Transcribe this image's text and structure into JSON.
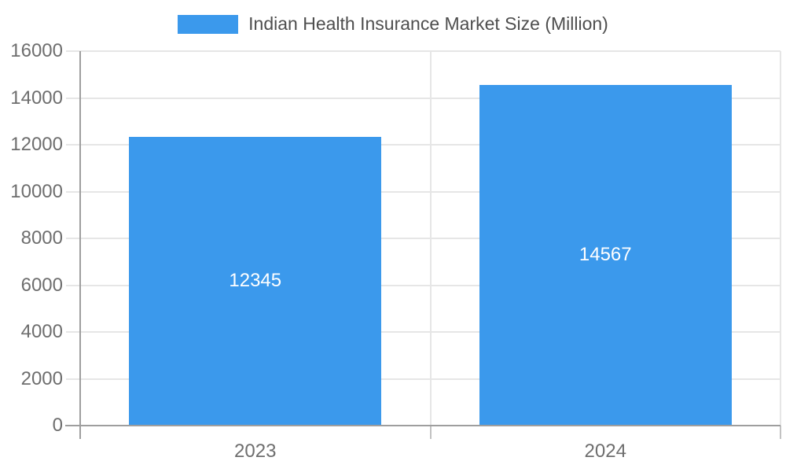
{
  "legend": {
    "label": "Indian Health Insurance Market Size (Million)"
  },
  "chart_data": {
    "type": "bar",
    "title": "Indian Health Insurance Market Size (Million)",
    "categories": [
      "2023",
      "2024"
    ],
    "values": [
      12345,
      14567
    ],
    "bar_labels": [
      "12345",
      "14567"
    ],
    "series": [
      {
        "name": "Indian Health Insurance Market Size (Million)",
        "values": [
          12345,
          14567
        ]
      }
    ],
    "xlabel": "",
    "ylabel": "",
    "ylim": [
      0,
      16000
    ],
    "ytick_step": 2000,
    "ytick_labels": [
      "0",
      "2000",
      "4000",
      "6000",
      "8000",
      "10000",
      "12000",
      "14000",
      "16000"
    ],
    "grid": true,
    "legend_position": "top",
    "colors": {
      "bar": "#3b99ec",
      "gridline": "#e6e6e6",
      "axis": "#9e9e9e",
      "divider_tick": "#c2c2c2",
      "tick_label": "#6e6e6e",
      "legend_text": "#4e4e4e",
      "bar_label": "#ffffff",
      "background": "#ffffff"
    }
  }
}
